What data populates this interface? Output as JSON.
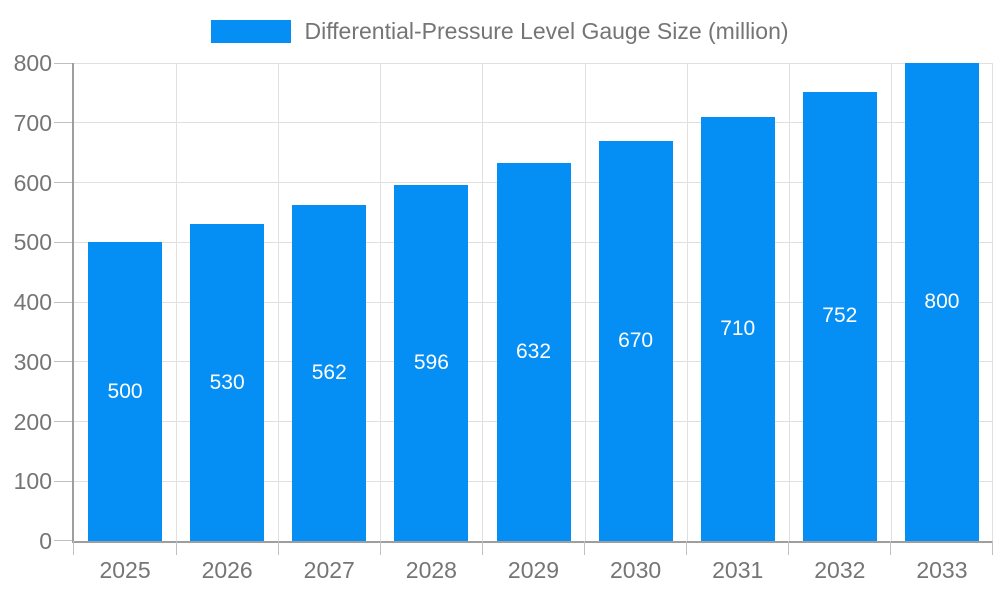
{
  "legend": {
    "label": "Differential-Pressure Level Gauge Size (million)"
  },
  "chart_data": {
    "type": "bar",
    "title": "Differential-Pressure Level Gauge Size (million)",
    "categories": [
      "2025",
      "2026",
      "2027",
      "2028",
      "2029",
      "2030",
      "2031",
      "2032",
      "2033"
    ],
    "values": [
      500,
      530,
      562,
      596,
      632,
      670,
      710,
      752,
      800
    ],
    "bar_labels": [
      "500",
      "530",
      "562",
      "596",
      "632",
      "670",
      "710",
      "752",
      "800"
    ],
    "xlabel": "",
    "ylabel": "",
    "ylim": [
      0,
      800
    ],
    "yticks": [
      0,
      100,
      200,
      300,
      400,
      500,
      600,
      700,
      800
    ],
    "ytick_labels": [
      "0",
      "100",
      "200",
      "300",
      "400",
      "500",
      "600",
      "700",
      "800"
    ],
    "grid": true,
    "legend_position": "top"
  },
  "colors": {
    "bar": "#058ff5",
    "bar_label": "#ffffff",
    "grid": "#e0e0e0",
    "axis": "#9e9e9e",
    "tick": "#c0c0c0",
    "text": "#757575",
    "background": "#ffffff"
  }
}
